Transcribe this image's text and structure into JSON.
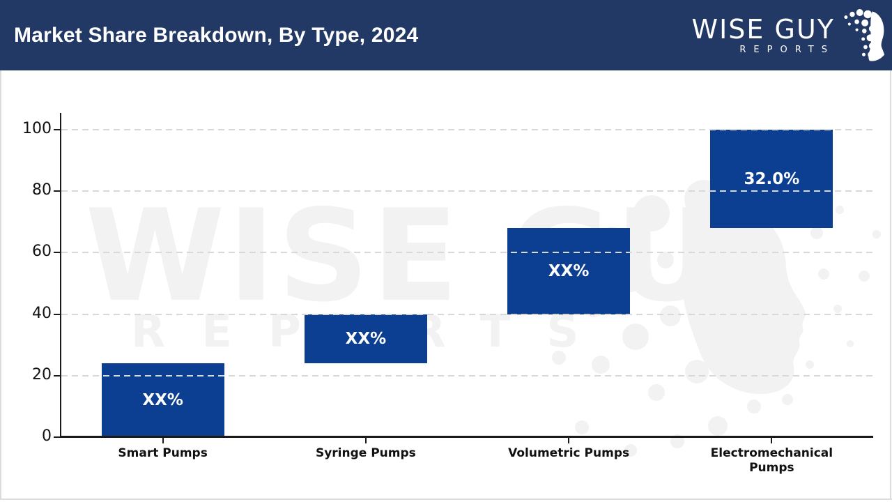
{
  "header": {
    "title": "Market Share Breakdown, By Type, 2024",
    "logo": {
      "wordmark": "WISE GUY",
      "subtext": "REPORTS"
    }
  },
  "watermark": {
    "line1": "WISE GU",
    "line2": "REPORTS"
  },
  "theme": {
    "header_bg": "#233965",
    "bar_color": "#0c3f92",
    "grid_color": "#d8d8d8",
    "watermark_color": "#f2f2f3",
    "axis_color": "#1a1a1a",
    "label_color": "#ffffff"
  },
  "chart_data": {
    "type": "bar",
    "subtype": "floating-waterfall",
    "title": "Market Share Breakdown, By Type, 2024",
    "categories": [
      "Smart Pumps",
      "Syringe Pumps",
      "Volumetric Pumps",
      "Electromechanical Pumps"
    ],
    "segments": [
      {
        "category": "Smart Pumps",
        "start": 0,
        "end": 24,
        "label": "XX%"
      },
      {
        "category": "Syringe Pumps",
        "start": 24,
        "end": 40,
        "label": "XX%"
      },
      {
        "category": "Volumetric Pumps",
        "start": 40,
        "end": 68,
        "label": "XX%"
      },
      {
        "category": "Electromechanical Pumps",
        "start": 68,
        "end": 100,
        "label": "32.0%"
      }
    ],
    "values_note_visible_labels": [
      "XX%",
      "XX%",
      "XX%",
      "32.0%"
    ],
    "yticks": [
      0,
      20,
      40,
      60,
      80,
      100
    ],
    "ylim": [
      0,
      100
    ],
    "xlabel": "",
    "ylabel": "",
    "grid": "horizontal-dashed-above-bars",
    "legend": "none"
  }
}
